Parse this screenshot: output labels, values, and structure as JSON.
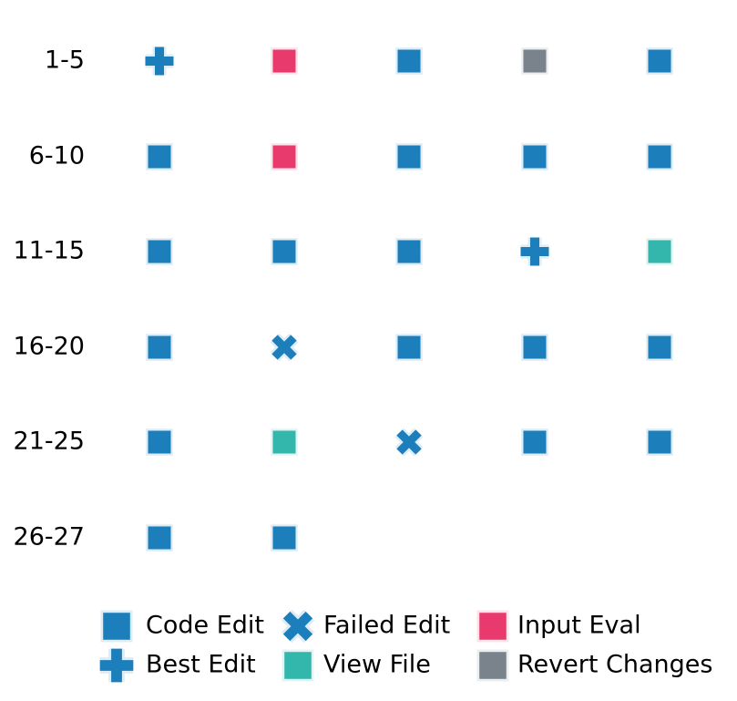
{
  "figure": {
    "background": "#ffffff",
    "text_color": "#000000"
  },
  "chart_data": {
    "type": "scatter",
    "title": "",
    "xlabel": "",
    "ylabel": "",
    "grid": false,
    "legend_position": "bottom",
    "y_categories": [
      "1-5",
      "6-10",
      "11-15",
      "16-20",
      "21-25",
      "26-27"
    ],
    "rows": [
      {
        "label": "1-5",
        "actions": [
          "best-edit",
          "input-eval",
          "code-edit",
          "revert-changes",
          "code-edit"
        ]
      },
      {
        "label": "6-10",
        "actions": [
          "code-edit",
          "input-eval",
          "code-edit",
          "code-edit",
          "code-edit"
        ]
      },
      {
        "label": "11-15",
        "actions": [
          "code-edit",
          "code-edit",
          "code-edit",
          "best-edit",
          "view-file"
        ]
      },
      {
        "label": "16-20",
        "actions": [
          "code-edit",
          "failed-edit",
          "code-edit",
          "code-edit",
          "code-edit"
        ]
      },
      {
        "label": "21-25",
        "actions": [
          "code-edit",
          "view-file",
          "failed-edit",
          "code-edit",
          "code-edit"
        ]
      },
      {
        "label": "26-27",
        "actions": [
          "code-edit",
          "code-edit"
        ]
      }
    ],
    "legend": [
      {
        "key": "code-edit",
        "label": "Code Edit",
        "marker": "square",
        "color": "#1c7fbb"
      },
      {
        "key": "failed-edit",
        "label": "Failed Edit",
        "marker": "x",
        "color": "#1c7fbb"
      },
      {
        "key": "input-eval",
        "label": "Input Eval",
        "marker": "square",
        "color": "#e93a6e"
      },
      {
        "key": "best-edit",
        "label": "Best Edit",
        "marker": "plus",
        "color": "#1c7fbb"
      },
      {
        "key": "view-file",
        "label": "View File",
        "marker": "square",
        "color": "#33b7ac"
      },
      {
        "key": "revert-changes",
        "label": "Revert Changes",
        "marker": "square",
        "color": "#7a838c"
      }
    ]
  }
}
